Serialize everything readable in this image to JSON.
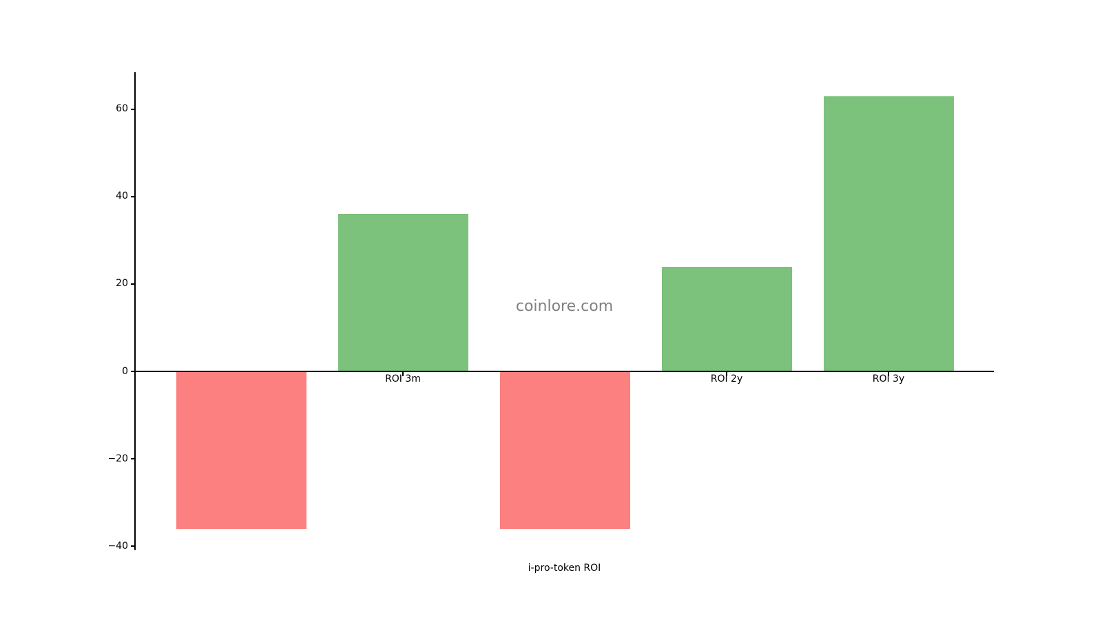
{
  "chart_data": {
    "type": "bar",
    "title": "",
    "xlabel": "i-pro-token ROI",
    "ylabel": "",
    "watermark": "coinlore.com",
    "categories": [
      "",
      "ROI 3m",
      "",
      "ROI 2y",
      "ROI 3y"
    ],
    "values": [
      -36,
      36,
      -36,
      24,
      63
    ],
    "bar_colors": {
      "positive": "#7cc17c",
      "negative": "#fc8080"
    },
    "axis_color": "#000000",
    "text_color": "#000000",
    "watermark_color": "#808080",
    "y_ticks": [
      {
        "label": "60",
        "value": 60
      },
      {
        "label": "40",
        "value": 40
      },
      {
        "label": "20",
        "value": 20
      },
      {
        "label": "0",
        "value": 0
      },
      {
        "label": "−20",
        "value": -20
      },
      {
        "label": "−40",
        "value": -40
      }
    ],
    "ylim": [
      -41,
      68
    ],
    "grid": false,
    "legend": null,
    "background": "#ffffff"
  }
}
